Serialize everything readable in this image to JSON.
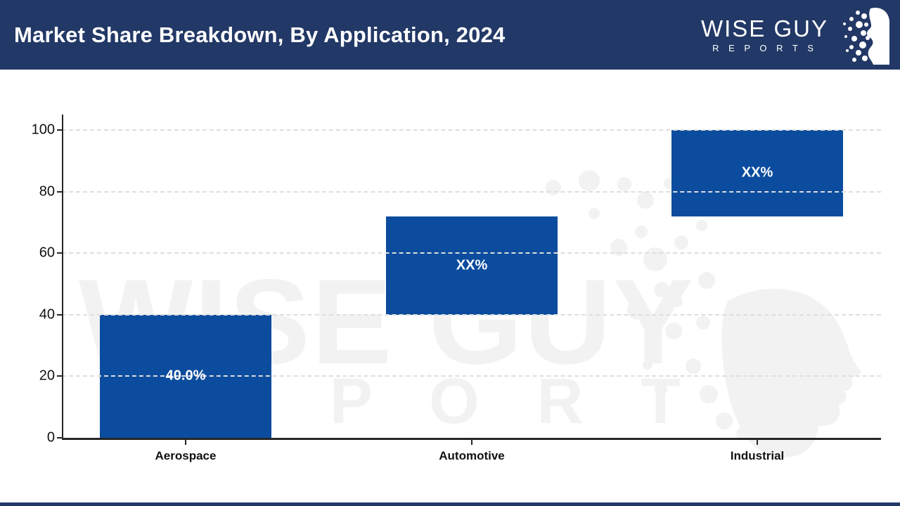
{
  "header": {
    "title": "Market Share Breakdown, By Application, 2024",
    "brand": {
      "name": "WISE GUY",
      "sub": "R E P O R T S",
      "face_icon": "dotted-head-profile"
    }
  },
  "watermark": {
    "line1": "WISE GUY",
    "line2": "REPORTS",
    "face_icon": "dotted-head-profile"
  },
  "colors": {
    "header_navy": "#223866",
    "bar_blue": "#0b4c9e",
    "gridline": "#dedede",
    "axis": "#262626",
    "watermark_gray": "#f2f2f2",
    "bar_label_white": "#ffffff"
  },
  "chart_data": {
    "type": "bar",
    "variant": "waterfall",
    "title": "Market Share Breakdown, By Application, 2024",
    "categories": [
      "Aerospace",
      "Automotive",
      "Industrial"
    ],
    "segments": [
      {
        "category": "Aerospace",
        "start": 0,
        "end": 40,
        "value": 40,
        "label": "40.0%"
      },
      {
        "category": "Automotive",
        "start": 40,
        "end": 72,
        "value": 32,
        "label": "XX%"
      },
      {
        "category": "Industrial",
        "start": 72,
        "end": 100,
        "value": 28,
        "label": "XX%"
      }
    ],
    "ylabel": "",
    "xlabel": "",
    "yticks": [
      0,
      20,
      40,
      60,
      80,
      100
    ],
    "ylim": [
      0,
      105
    ],
    "grid": "dashed-horizontal-over-bars",
    "legend": "none"
  }
}
